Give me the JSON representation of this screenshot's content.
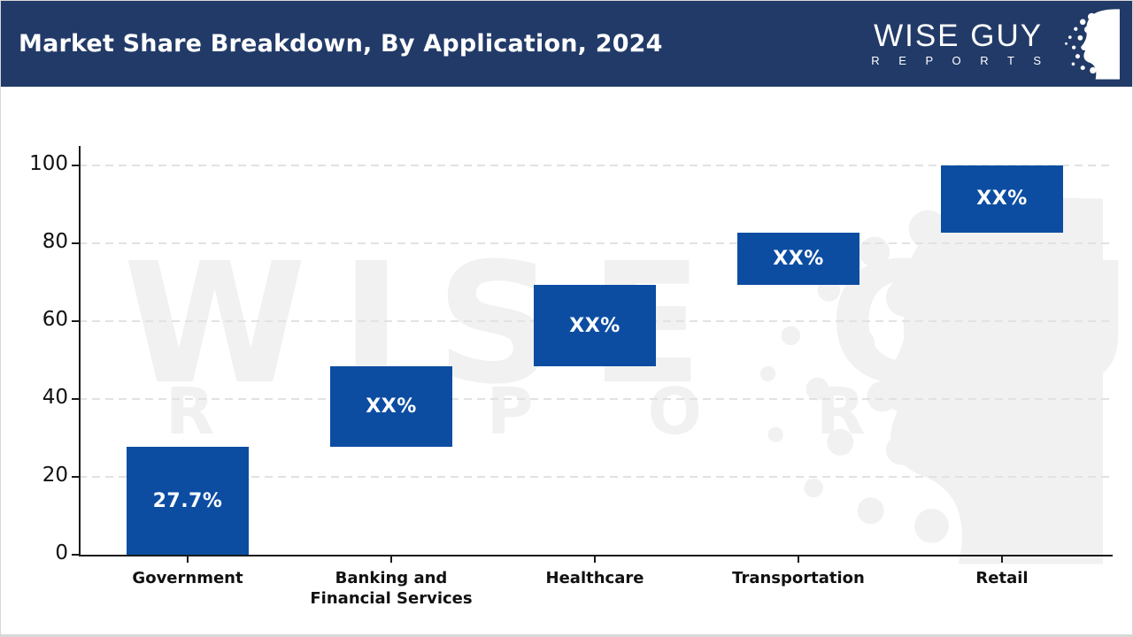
{
  "header": {
    "title": "Market Share Breakdown, By Application, 2024",
    "logo_line1": "WISE GUY",
    "logo_line2": "R E P O R T S"
  },
  "watermark": {
    "line1": "WISE GUY",
    "line2": "R E P O R T S"
  },
  "colors": {
    "header_bg": "#223A68",
    "bar": "#0C4DA2",
    "axis": "#1A1A1A",
    "gridline": "#E2E2E2",
    "bar_label_text": "#FFFFFF",
    "watermark": "#F1F1F1"
  },
  "chart_data": {
    "type": "bar",
    "subtype": "waterfall",
    "title": "Market Share Breakdown, By Application, 2024",
    "categories": [
      "Government",
      "Banking and Financial Services",
      "Healthcare",
      "Transportation",
      "Retail"
    ],
    "category_lines": [
      [
        "Government"
      ],
      [
        "Banking and",
        "Financial Services"
      ],
      [
        "Healthcare"
      ],
      [
        "Transportation"
      ],
      [
        "Retail"
      ]
    ],
    "segments": [
      {
        "category": "Government",
        "start": 0,
        "end": 27.7,
        "label": "27.7%"
      },
      {
        "category": "Banking and Financial Services",
        "start": 27.7,
        "end": 48.3,
        "label": "XX%"
      },
      {
        "category": "Healthcare",
        "start": 48.3,
        "end": 69.3,
        "label": "XX%"
      },
      {
        "category": "Transportation",
        "start": 69.3,
        "end": 82.8,
        "label": "XX%"
      },
      {
        "category": "Retail",
        "start": 82.8,
        "end": 100,
        "label": "XX%"
      }
    ],
    "ylim": [
      0,
      100
    ],
    "yticks": [
      0,
      20,
      40,
      60,
      80,
      100
    ],
    "xlabel": "",
    "ylabel": "",
    "grid": "horizontal-dashed",
    "legend": "none",
    "bar_color": "#0C4DA2"
  }
}
